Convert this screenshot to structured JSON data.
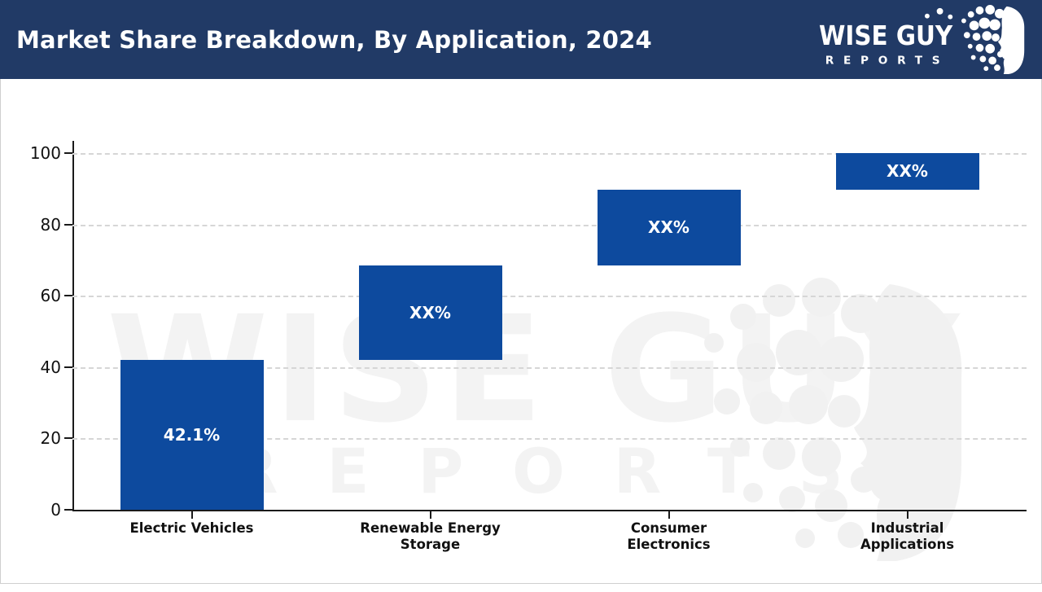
{
  "header": {
    "title": "Market Share Breakdown, By Application, 2024",
    "logo": {
      "brand_line1": "WISE GUY",
      "brand_line2": "REPORTS"
    }
  },
  "watermark": {
    "line1": "WISE GUY",
    "line2": "REPORTS"
  },
  "colors": {
    "header_bg": "#213a66",
    "bar": "#0d4a9e",
    "grid": "#d6d6d6",
    "axis": "#1a1a1a",
    "bar_label": "#ffffff",
    "watermark": "#f3f3f3",
    "page_border": "#cfcfcf"
  },
  "chart_data": {
    "type": "bar",
    "subtype": "waterfall-floating-bars",
    "title": "Market Share Breakdown, By Application, 2024",
    "categories": [
      "Electric Vehicles",
      "Renewable Energy\nStorage",
      "Consumer\nElectronics",
      "Industrial\nApplications"
    ],
    "segments": [
      {
        "category": "Electric Vehicles",
        "label": "42.1%",
        "start": 0,
        "end": 42.1
      },
      {
        "category": "Renewable Energy Storage",
        "label": "XX%",
        "start": 42.1,
        "end": 68.5
      },
      {
        "category": "Consumer Electronics",
        "label": "XX%",
        "start": 68.5,
        "end": 89.7
      },
      {
        "category": "Industrial Applications",
        "label": "XX%",
        "start": 89.7,
        "end": 100
      }
    ],
    "xlabel": "",
    "ylabel": "",
    "yticks": [
      0,
      20,
      40,
      60,
      80,
      100
    ],
    "ylim": [
      0,
      103.4
    ],
    "grid": "horizontal-dashed",
    "legend": "none",
    "bar_color": "#0d4a9e"
  }
}
